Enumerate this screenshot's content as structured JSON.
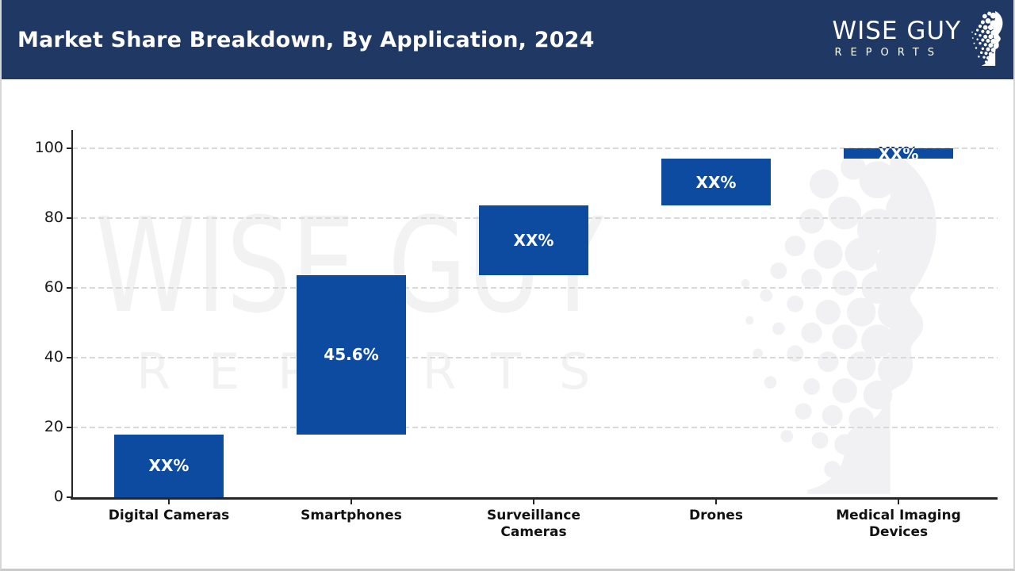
{
  "header": {
    "title": "Market Share Breakdown, By Application, 2024",
    "brand": {
      "line1": "WISE GUY",
      "line2": "REPORTS"
    }
  },
  "watermark": {
    "line1": "WISE GUY",
    "line2": "REPORTS"
  },
  "chart_data": {
    "type": "bar",
    "subtype": "waterfall",
    "title": "Market Share Breakdown, By Application, 2024",
    "categories": [
      "Digital Cameras",
      "Smartphones",
      "Surveillance\nCameras",
      "Drones",
      "Medical Imaging\nDevices"
    ],
    "bars": [
      {
        "category": "Digital Cameras",
        "start": 0,
        "end": 18,
        "value_label": "XX%"
      },
      {
        "category": "Smartphones",
        "start": 18,
        "end": 63.6,
        "value_label": "45.6%"
      },
      {
        "category": "Surveillance Cameras",
        "start": 63.6,
        "end": 83.6,
        "value_label": "XX%"
      },
      {
        "category": "Drones",
        "start": 83.6,
        "end": 97,
        "value_label": "XX%"
      },
      {
        "category": "Medical Imaging Devices",
        "start": 97,
        "end": 100,
        "value_label": "XX%"
      }
    ],
    "yticks": [
      0,
      20,
      40,
      60,
      80,
      100
    ],
    "ylim": [
      0,
      105
    ],
    "xlabel": "",
    "ylabel": "",
    "grid": "horizontal-dashed",
    "legend": "none",
    "colors": {
      "bar": "#0d4ba0",
      "header_background": "#1f3864",
      "label_on_bar": "#ffffff",
      "label_off_bar": "#163d7a",
      "gridline": "#d9d9d9",
      "axis": "#262626"
    }
  }
}
